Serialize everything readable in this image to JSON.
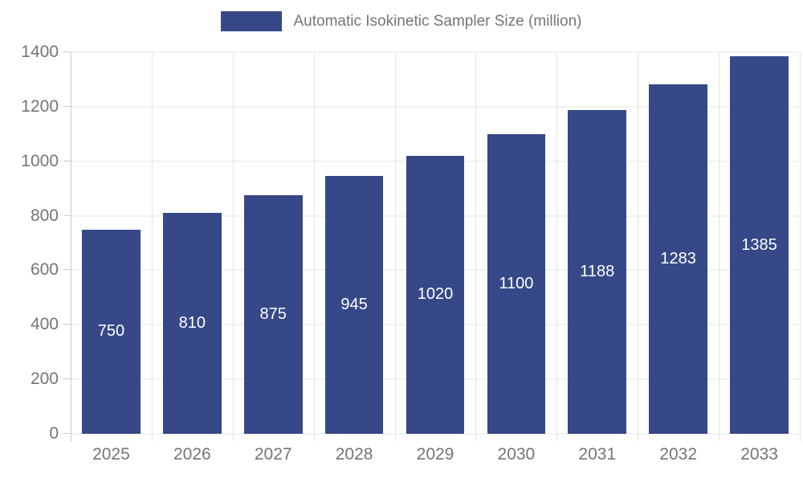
{
  "chart_data": {
    "type": "bar",
    "title": "Automatic Isokinetic Sampler Size (million)",
    "categories": [
      "2025",
      "2026",
      "2027",
      "2028",
      "2029",
      "2030",
      "2031",
      "2032",
      "2033"
    ],
    "values": [
      750,
      810,
      875,
      945,
      1020,
      1100,
      1188,
      1283,
      1385
    ],
    "xlabel": "",
    "ylabel": "",
    "ylim": [
      0,
      1400
    ],
    "ytick_step": 200,
    "grid": true,
    "legend_position": "top",
    "legend_entries": [
      "Automatic Isokinetic Sampler Size (million)"
    ],
    "bar_labels_shown": true
  },
  "legend": {
    "label": "Automatic Isokinetic Sampler Size (million)"
  },
  "colors": {
    "bar": "#364888",
    "bar_label": "#ffffff",
    "axis_text": "#757575",
    "grid_line": "#e6e6e6",
    "axis_line": "#c9c9c9",
    "background": "#ffffff"
  }
}
